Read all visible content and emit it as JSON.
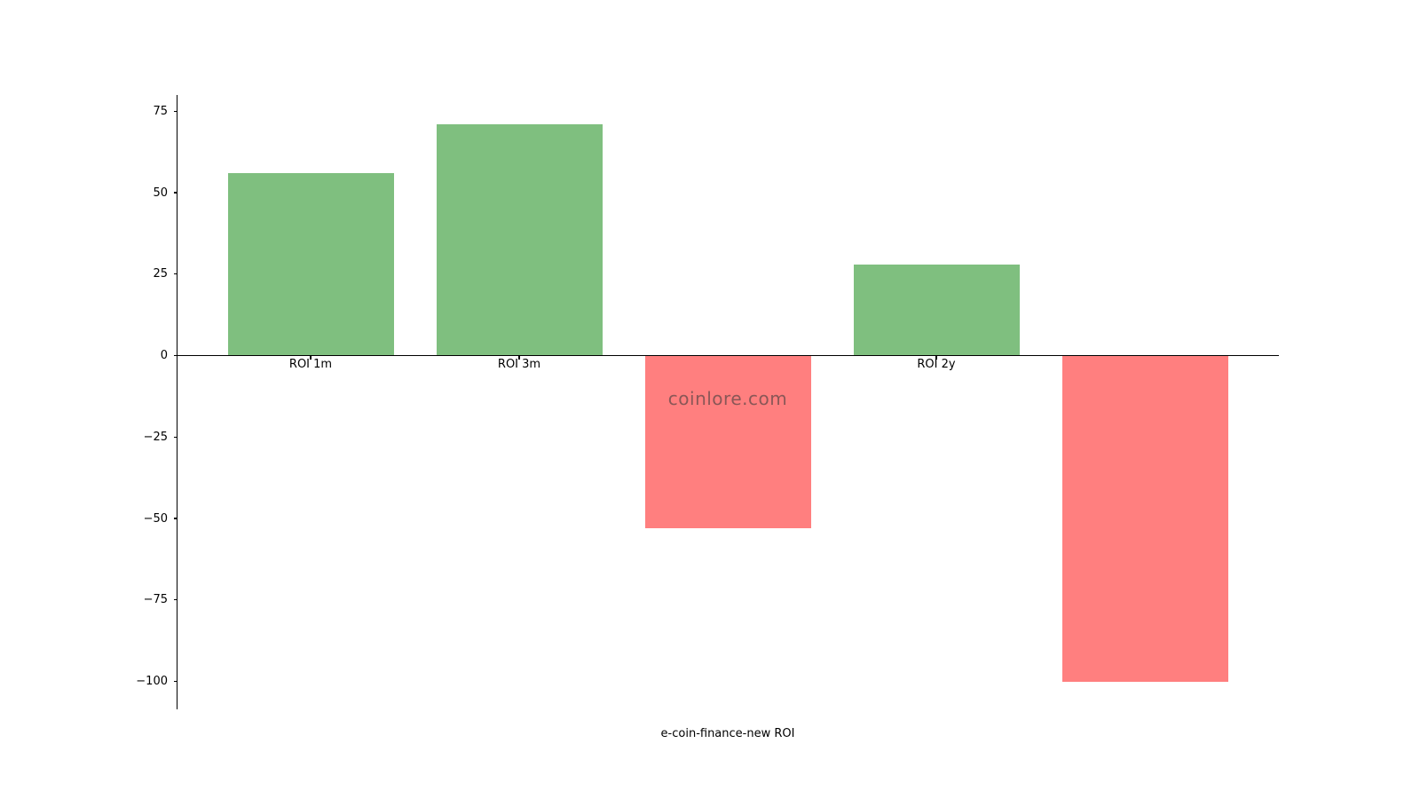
{
  "watermark": {
    "text": "coinlore.com",
    "color": "#8a5757"
  },
  "chart_data": {
    "type": "bar",
    "title": "",
    "xlabel": "e-coin-finance-new ROI",
    "ylabel": "",
    "categories": [
      "ROI 1m",
      "ROI 3m",
      "",
      "ROI 2y",
      ""
    ],
    "category_labels_visible": [
      true,
      true,
      false,
      true,
      false
    ],
    "values": [
      56,
      71,
      -53,
      28,
      -100
    ],
    "y_ticks": [
      75,
      50,
      25,
      0,
      -25,
      -50,
      -75,
      -100
    ],
    "ylim": [
      -108.5,
      80
    ],
    "grid": false,
    "legend_position": "none",
    "bar_color_positive": "#7fbf7f",
    "bar_color_negative": "#ff7f7f",
    "axis_color": "#000000"
  }
}
